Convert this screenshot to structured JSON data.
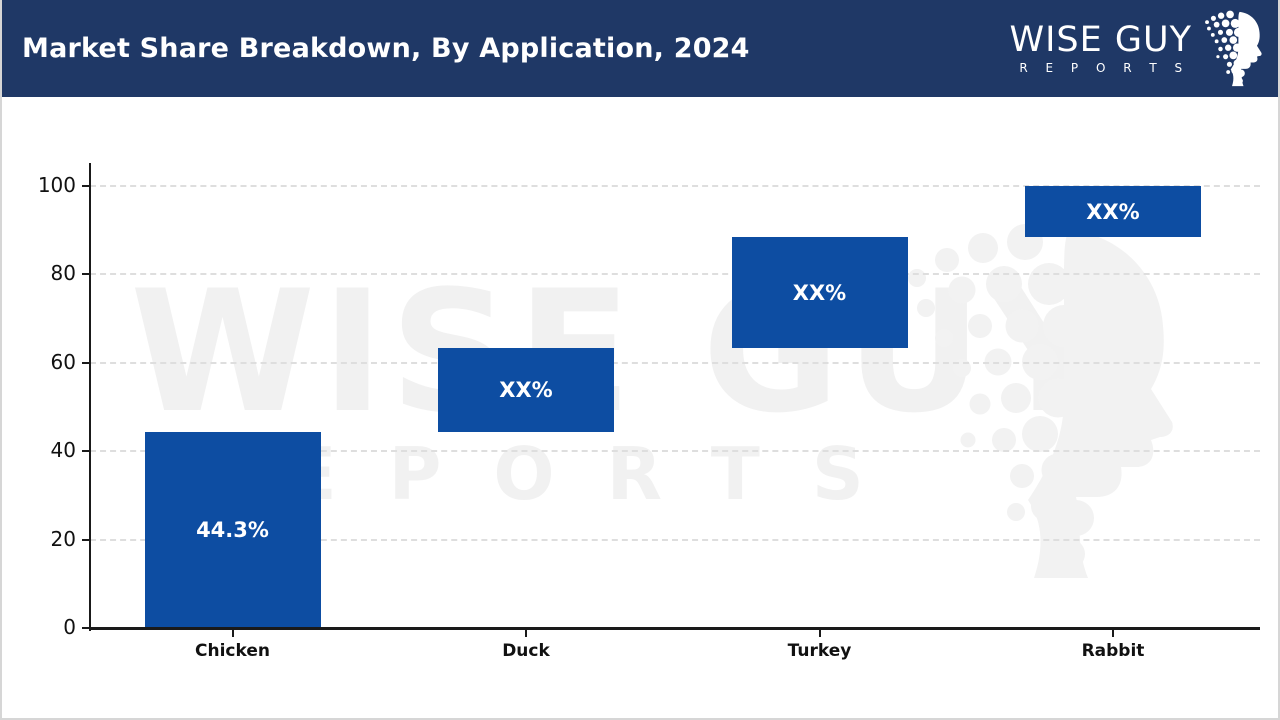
{
  "header": {
    "title": "Market Share Breakdown, By Application, 2024",
    "logo": {
      "line1": "WISE GUY",
      "line2": "R E P O R T S"
    }
  },
  "watermark": {
    "line1": "WISE GUY",
    "line2": "REPORTS"
  },
  "colors": {
    "header_bg": "#1f3866",
    "bar": "#0d4da2",
    "grid": "#dedede",
    "axis": "#1a1a1a",
    "watermark": "#f1f1f1",
    "bar_label": "#ffffff"
  },
  "chart_data": {
    "type": "waterfall",
    "title": "Market Share Breakdown, By Application, 2024",
    "categories": [
      "Chicken",
      "Duck",
      "Turkey",
      "Rabbit"
    ],
    "segments": [
      {
        "category": "Chicken",
        "start": 0,
        "end": 44.3,
        "label": "44.3%"
      },
      {
        "category": "Duck",
        "start": 44.3,
        "end": 63.3,
        "label": "XX%"
      },
      {
        "category": "Turkey",
        "start": 63.3,
        "end": 88.4,
        "label": "XX%"
      },
      {
        "category": "Rabbit",
        "start": 88.4,
        "end": 100,
        "label": "XX%"
      }
    ],
    "ylim": [
      0,
      100
    ],
    "yticks": [
      0,
      20,
      40,
      60,
      80,
      100
    ],
    "xlabel": "",
    "ylabel": "",
    "grid": "dashed-horizontal",
    "legend": "none"
  }
}
